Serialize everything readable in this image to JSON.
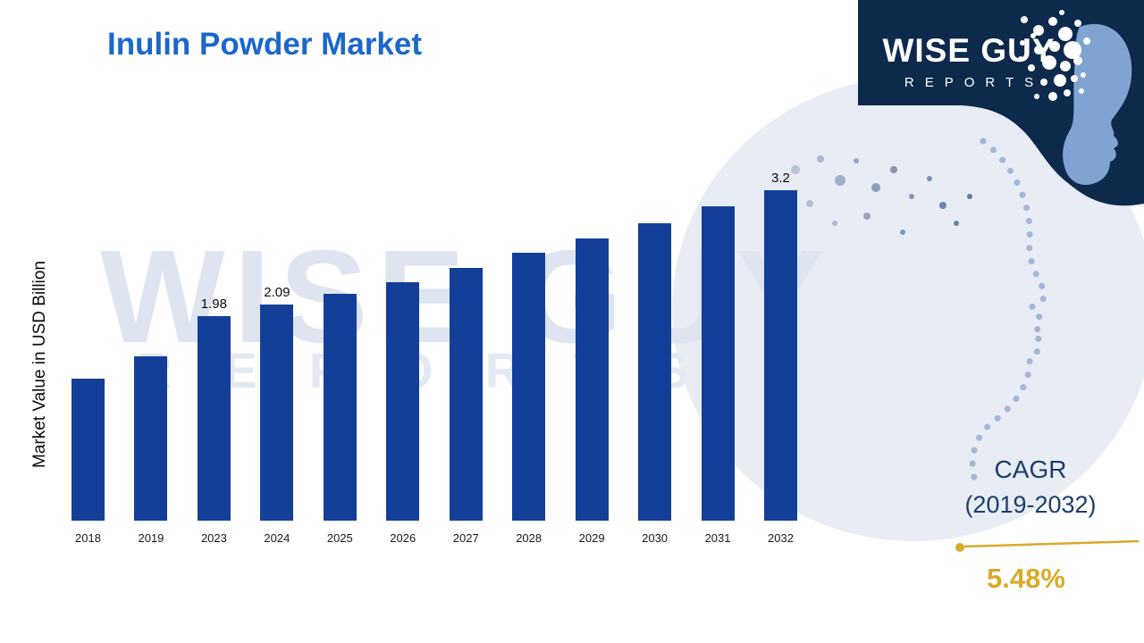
{
  "header": {
    "title": "Inulin Powder Market"
  },
  "logo": {
    "line1": "WISE GUY",
    "line2": "REPORTS"
  },
  "watermark": {
    "line1": "WISE GUY",
    "line2": "REPORTS"
  },
  "chart_data": {
    "type": "bar",
    "title": "Inulin Powder Market",
    "categories": [
      "2018",
      "2019",
      "2023",
      "2024",
      "2025",
      "2026",
      "2027",
      "2028",
      "2029",
      "2030",
      "2031",
      "2032"
    ],
    "values": [
      1.38,
      1.59,
      1.98,
      2.09,
      2.2,
      2.31,
      2.45,
      2.6,
      2.73,
      2.88,
      3.05,
      3.2
    ],
    "bar_labels": [
      "",
      "",
      "1.98",
      "2.09",
      "",
      "",
      "",
      "",
      "",
      "",
      "",
      "3.2"
    ],
    "xlabel": "",
    "ylabel": "Market Value in USD Billion",
    "ylim": [
      0,
      3.4
    ],
    "grid": false,
    "legend": false,
    "bar_color": "#133f98"
  },
  "cagr": {
    "label": "CAGR",
    "range": "(2019-2032)",
    "value": "5.48%"
  },
  "colors": {
    "title_blue": "#1b67cc",
    "bar_blue": "#133f98",
    "navy_panel": "#0d2a4d",
    "gold_accent": "#d9a92c",
    "cagr_text": "#1d3c6e",
    "watermark": "#dee5f0"
  }
}
